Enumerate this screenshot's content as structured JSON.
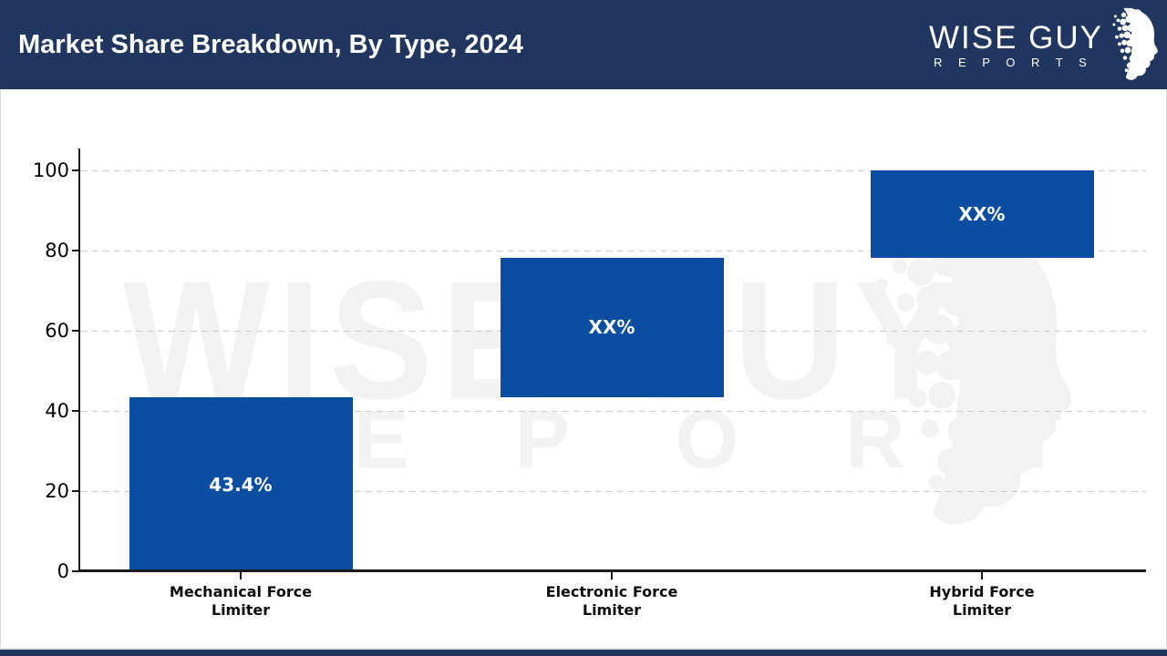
{
  "header": {
    "title": "Market Share Breakdown, By Type, 2024",
    "logo_line1": "WISE GUY",
    "logo_line2": "R E P O R T S"
  },
  "watermark": {
    "line1": "WISE GUY",
    "line2": "R E P O R T S"
  },
  "chart_data": {
    "type": "bar",
    "subtype": "floating-stacked-segments",
    "title": "Market Share Breakdown, By Type, 2024",
    "categories": [
      "Mechanical Force\nLimiter",
      "Electronic Force\nLimiter",
      "Hybrid Force\nLimiter"
    ],
    "segments": [
      {
        "category": "Mechanical Force Limiter",
        "base": 0,
        "top": 43.4,
        "label": "43.4%"
      },
      {
        "category": "Electronic Force Limiter",
        "base": 43.4,
        "top": 78.2,
        "label": "XX%"
      },
      {
        "category": "Hybrid Force Limiter",
        "base": 78.2,
        "top": 100,
        "label": "XX%"
      }
    ],
    "ylim": [
      0,
      100
    ],
    "yticks": [
      0,
      20,
      40,
      60,
      80,
      100
    ],
    "xlabel": "",
    "ylabel": "",
    "grid": "horizontal-dashed",
    "legend_position": "none",
    "colors": {
      "bar": "#0b4da1",
      "grid": "#cccccc",
      "axis": "#1a1a1a",
      "bar_label_text": "#ffffff"
    }
  },
  "colors": {
    "header_bg": "#20365f",
    "footer_bg": "#20365f",
    "watermark": "#f2f2f2"
  }
}
